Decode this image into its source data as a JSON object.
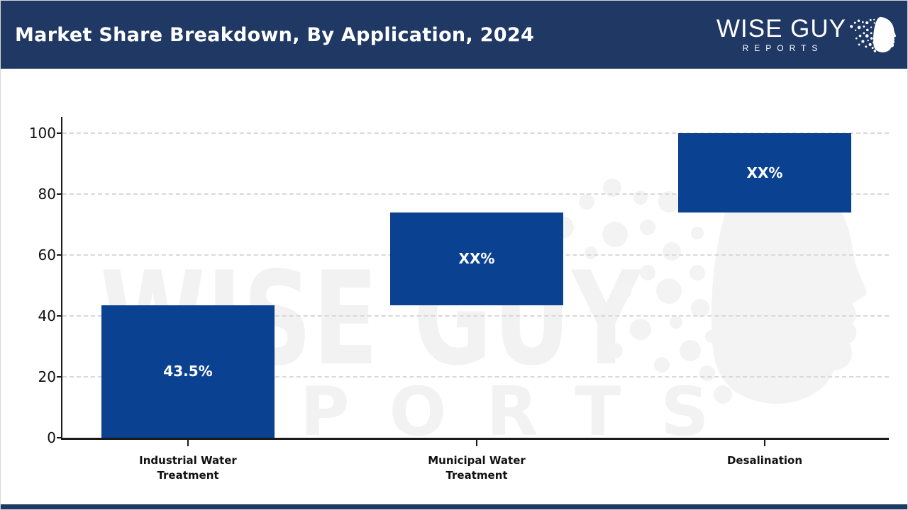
{
  "header": {
    "title": "Market Share Breakdown, By Application, 2024",
    "logo": {
      "line1": "WISE GUY",
      "line2": "REPORTS"
    }
  },
  "watermark": {
    "line1": "WISE GUY",
    "line2": "REPORTS"
  },
  "chart_data": {
    "type": "bar",
    "subtype": "waterfall",
    "title": "Market Share Breakdown, By Application, 2024",
    "categories": [
      [
        "Industrial Water",
        "Treatment"
      ],
      [
        "Municipal Water",
        "Treatment"
      ],
      [
        "Desalination"
      ]
    ],
    "bars": [
      {
        "label": "43.5%",
        "start": 0,
        "end": 43.5
      },
      {
        "label": "XX%",
        "start": 43.5,
        "end": 74
      },
      {
        "label": "XX%",
        "start": 74,
        "end": 100
      }
    ],
    "xlabel": "",
    "ylabel": "",
    "ylim": [
      0,
      105
    ],
    "yticks": [
      0,
      20,
      40,
      60,
      80,
      100
    ],
    "grid": "horizontal-dashed",
    "legend": "none",
    "bar_color": "#0b4191",
    "bar_label_color": "#ffffff"
  },
  "colors": {
    "header_bg": "#1f3864",
    "footer_bg": "#1f3864",
    "bar": "#0b4191",
    "gridline": "#d9d9d9",
    "axis": "#1a1a1a",
    "watermark": "#f2f2f2"
  }
}
